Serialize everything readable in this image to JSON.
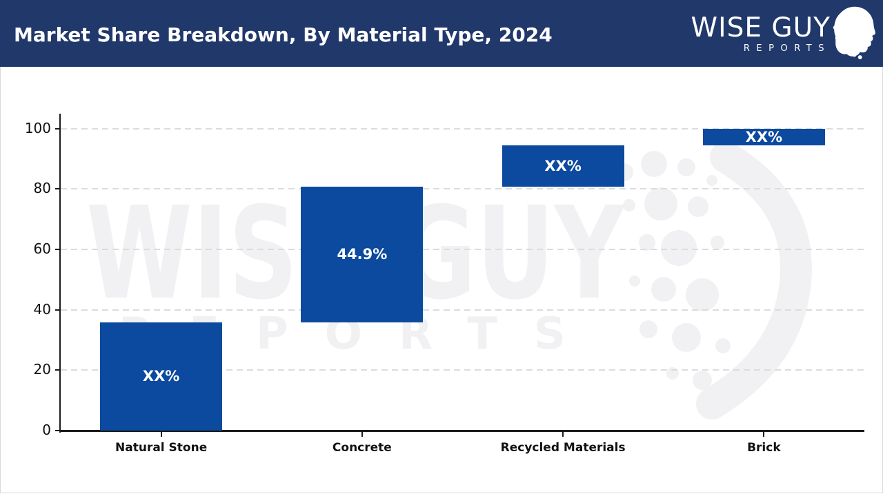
{
  "header": {
    "title": "Market Share Breakdown, By Material Type, 2024",
    "logo": {
      "wordmark": "WISE GUY",
      "tagline": "REPORTS"
    },
    "colors": {
      "background": "#21386b",
      "text": "#ffffff"
    }
  },
  "watermark": {
    "line1": "WISE GUY",
    "line2": "REPORTS",
    "color": "#f1f1f3"
  },
  "chart_data": {
    "type": "bar",
    "subtype": "waterfall",
    "title": "Market Share Breakdown, By Material Type, 2024",
    "categories": [
      "Natural Stone",
      "Concrete",
      "Recycled Materials",
      "Brick"
    ],
    "segments": [
      {
        "category": "Natural Stone",
        "start": 0,
        "value": 35.9,
        "label": "XX%"
      },
      {
        "category": "Concrete",
        "start": 35.9,
        "value": 44.9,
        "label": "44.9%"
      },
      {
        "category": "Recycled Materials",
        "start": 80.8,
        "value": 13.7,
        "label": "XX%"
      },
      {
        "category": "Brick",
        "start": 94.5,
        "value": 5.5,
        "label": "XX%"
      }
    ],
    "xlabel": "",
    "ylabel": "",
    "ylim": [
      0,
      105
    ],
    "yticks": [
      0,
      20,
      40,
      60,
      80,
      100
    ],
    "grid": "horizontal-dashed",
    "legend": "none",
    "bar_color": "#0b4a9e",
    "value_label_color": "#ffffff",
    "axis_color": "#1a1a1a",
    "gridline_color": "#dcdcdc"
  }
}
